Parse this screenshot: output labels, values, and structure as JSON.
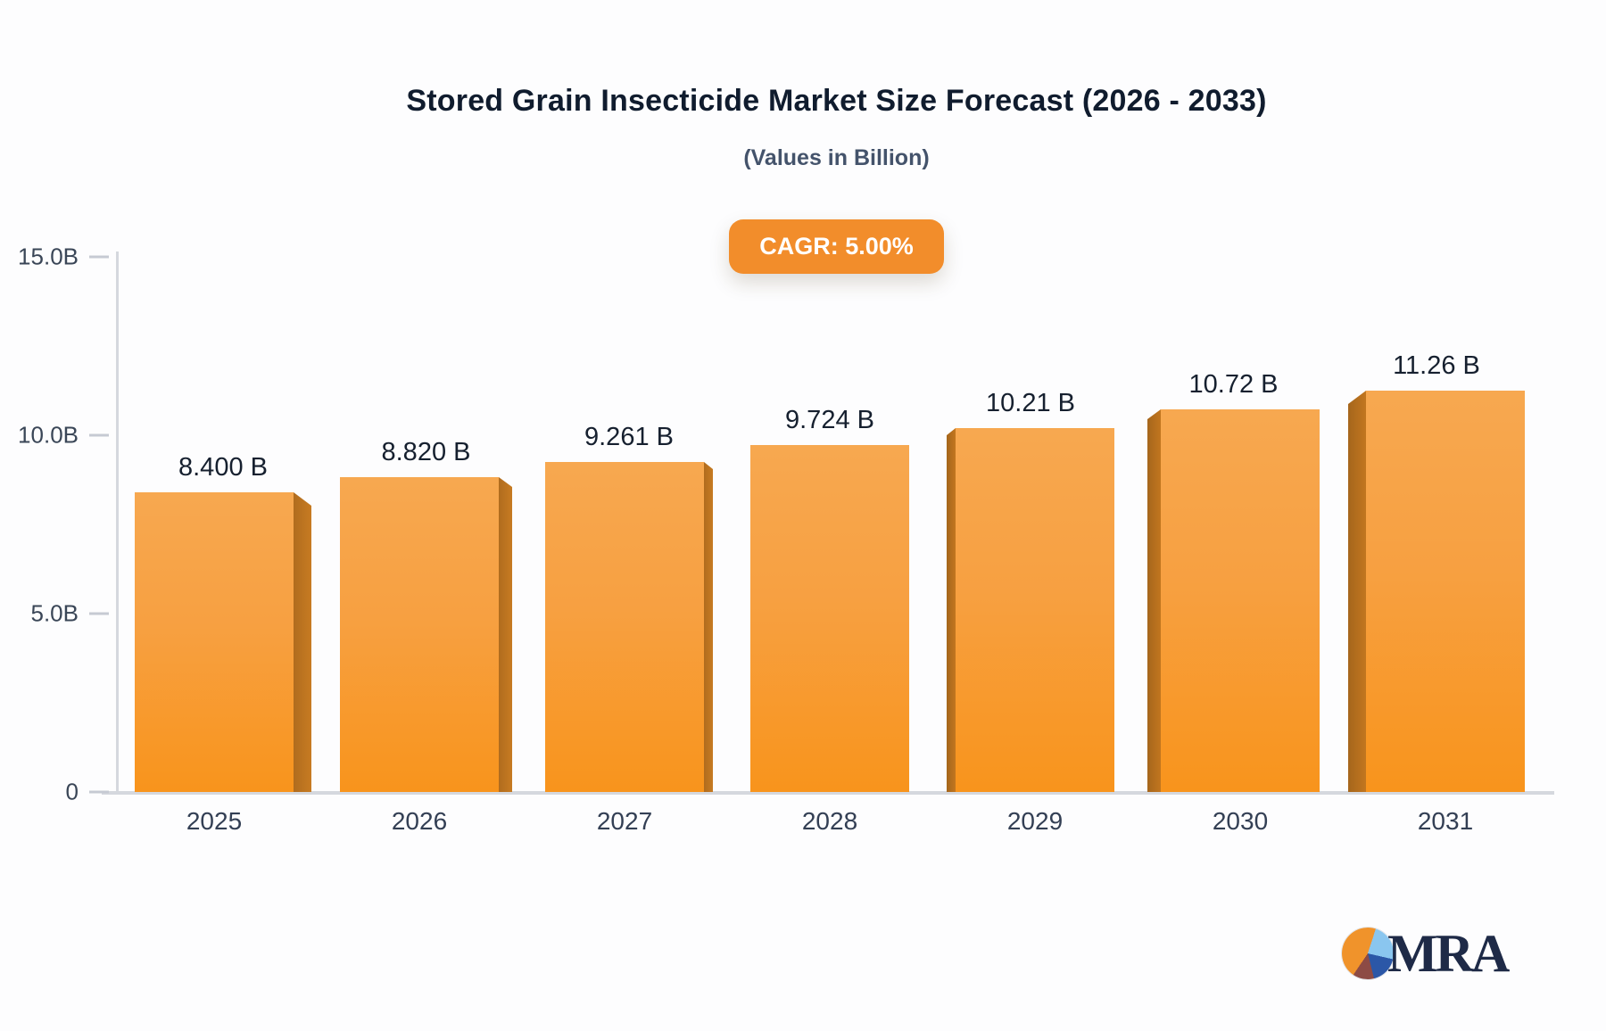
{
  "header": {
    "title": "Stored Grain Insecticide Market Size Forecast (2026 - 2033)",
    "subtitle": "(Values in Billion)",
    "cagr_badge": "CAGR: 5.00%"
  },
  "chart_data": {
    "type": "bar",
    "title": "Stored Grain Insecticide Market Size Forecast (2026 - 2033)",
    "subtitle": "(Values in Billion)",
    "annotation": "CAGR: 5.00%",
    "categories": [
      "2025",
      "2026",
      "2027",
      "2028",
      "2029",
      "2030",
      "2031"
    ],
    "values": [
      8.4,
      8.82,
      9.261,
      9.724,
      10.21,
      10.72,
      11.26
    ],
    "value_labels": [
      "8.400 B",
      "8.820 B",
      "9.261 B",
      "9.724 B",
      "10.21 B",
      "10.72 B",
      "11.26 B"
    ],
    "unit": "Billion",
    "ylim": [
      0,
      15
    ],
    "yticks": [
      {
        "label": "15.0B",
        "value": 15
      },
      {
        "label": "10.0B",
        "value": 10
      },
      {
        "label": "5.0B",
        "value": 5
      },
      {
        "label": "0",
        "value": 0
      }
    ],
    "grid": false,
    "legend": "none",
    "bar_style": "3d-perspective",
    "colors": {
      "bar_face_top": "#F7A850",
      "bar_face_bottom": "#F8941C",
      "bar_bevel": "#B97120",
      "badge_bg": "#F28D2B",
      "badge_text": "#FFFFFF",
      "axis_line": "#D5D8DE",
      "tick_text": "#3A4657",
      "title_text": "#101C2E",
      "subtitle_text": "#44536B"
    }
  },
  "logo": {
    "text": "MRA",
    "icon": "pie-chart-icon",
    "pie_colors": [
      "#F0932B",
      "#8AC6EF",
      "#2B57A7",
      "#8D4B45"
    ]
  }
}
